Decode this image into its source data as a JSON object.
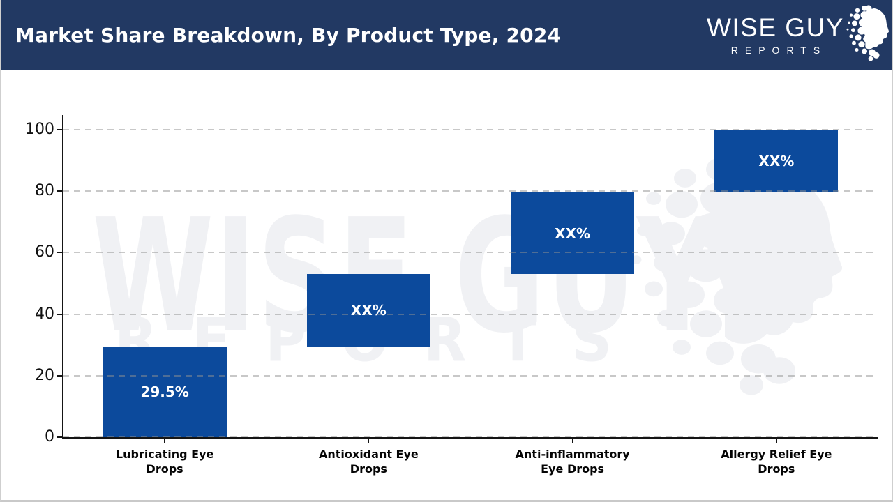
{
  "header": {
    "title": "Market Share Breakdown, By Product Type, 2024",
    "logo": {
      "wordmark": "WISE GUY",
      "subtitle": "REPORTS"
    }
  },
  "watermark": {
    "wordmark": "WISE GUY",
    "subtitle": "REPORTS"
  },
  "chart_data": {
    "type": "bar",
    "subtype": "floating-waterfall",
    "title": "Market Share Breakdown, By Product Type, 2024",
    "categories": [
      "Lubricating Eye Drops",
      "Antioxidant Eye Drops",
      "Anti-inflammatory Eye Drops",
      "Allergy Relief Eye Drops"
    ],
    "category_lines": [
      [
        "Lubricating Eye",
        "Drops"
      ],
      [
        "Antioxidant Eye",
        "Drops"
      ],
      [
        "Anti-inflammatory",
        "Eye Drops"
      ],
      [
        "Allergy Relief Eye",
        "Drops"
      ]
    ],
    "segments": [
      {
        "start": 0,
        "end": 29.5,
        "label": "29.5%"
      },
      {
        "start": 29.5,
        "end": 53,
        "label": "XX%"
      },
      {
        "start": 53,
        "end": 79.5,
        "label": "XX%"
      },
      {
        "start": 79.5,
        "end": 100,
        "label": "XX%"
      }
    ],
    "yticks": [
      0,
      20,
      40,
      60,
      80,
      100
    ],
    "ylim": [
      0,
      104
    ],
    "grid": true,
    "legend": false,
    "xlabel": "",
    "ylabel": "",
    "bar_color": "#0c4a9c",
    "bar_label_color": "#ffffff",
    "header_color": "#223963",
    "watermark_color": "#f0f1f4"
  }
}
